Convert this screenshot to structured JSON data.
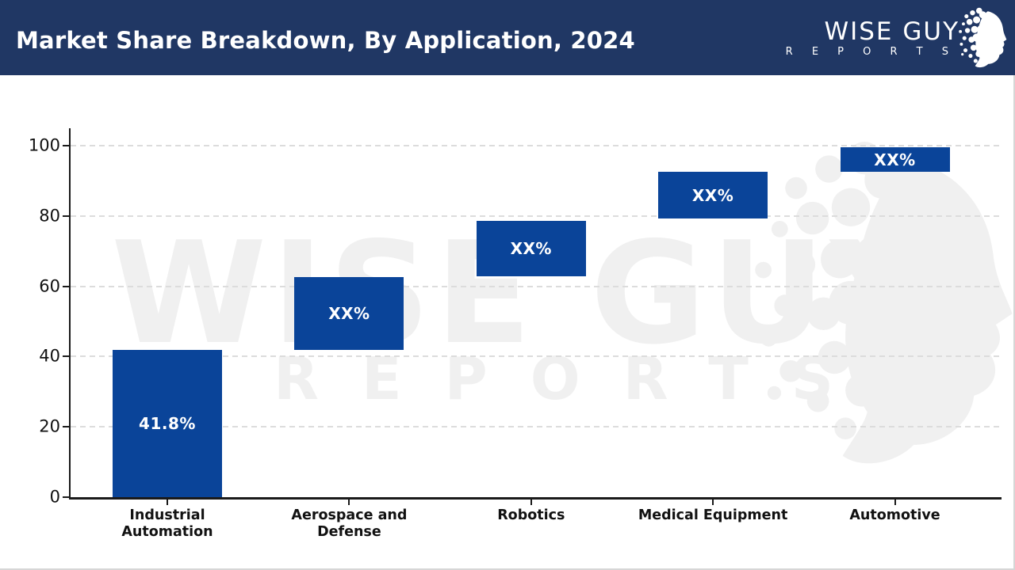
{
  "header": {
    "title": "Market Share Breakdown, By Application, 2024",
    "brand": {
      "line1": "WISE GUY",
      "line2": "R E P O R T S"
    }
  },
  "watermark": {
    "line1": "WISE GUY",
    "line2": "REPORTS"
  },
  "colors": {
    "header_bg": "#203764",
    "title_text": "#ffffff",
    "bar": "#0a4499",
    "bar_label": "#ffffff",
    "axis": "#1a1a1a",
    "grid": "#dcdcdc",
    "tick_label": "#111111",
    "category_label": "#111111",
    "watermark": "#f0f0f0",
    "frame_border": "#d6d6d6"
  },
  "chart_data": {
    "type": "bar",
    "subtype": "floating-waterfall",
    "title": "Market Share Breakdown, By Application, 2024",
    "categories": [
      "Industrial Automation",
      "Aerospace and Defense",
      "Robotics",
      "Medical Equipment",
      "Automotive"
    ],
    "category_label_lines": [
      [
        "Industrial",
        "Automation"
      ],
      [
        "Aerospace and",
        "Defense"
      ],
      [
        "Robotics"
      ],
      [
        "Medical Equipment"
      ],
      [
        "Automotive"
      ]
    ],
    "segments": [
      {
        "category": "Industrial Automation",
        "start": 0,
        "end": 41.8,
        "label": "41.8%"
      },
      {
        "category": "Aerospace and Defense",
        "start": 41.8,
        "end": 62.6,
        "label": "XX%"
      },
      {
        "category": "Robotics",
        "start": 62.8,
        "end": 78.6,
        "label": "XX%"
      },
      {
        "category": "Medical Equipment",
        "start": 79.2,
        "end": 92.6,
        "label": "XX%"
      },
      {
        "category": "Automotive",
        "start": 92.5,
        "end": 99.5,
        "label": "XX%"
      }
    ],
    "yticks": [
      0,
      20,
      40,
      60,
      80,
      100
    ],
    "ylim": [
      0,
      105
    ],
    "xlabel": "",
    "ylabel": "",
    "grid": "horizontal dashed",
    "legend": "none"
  }
}
